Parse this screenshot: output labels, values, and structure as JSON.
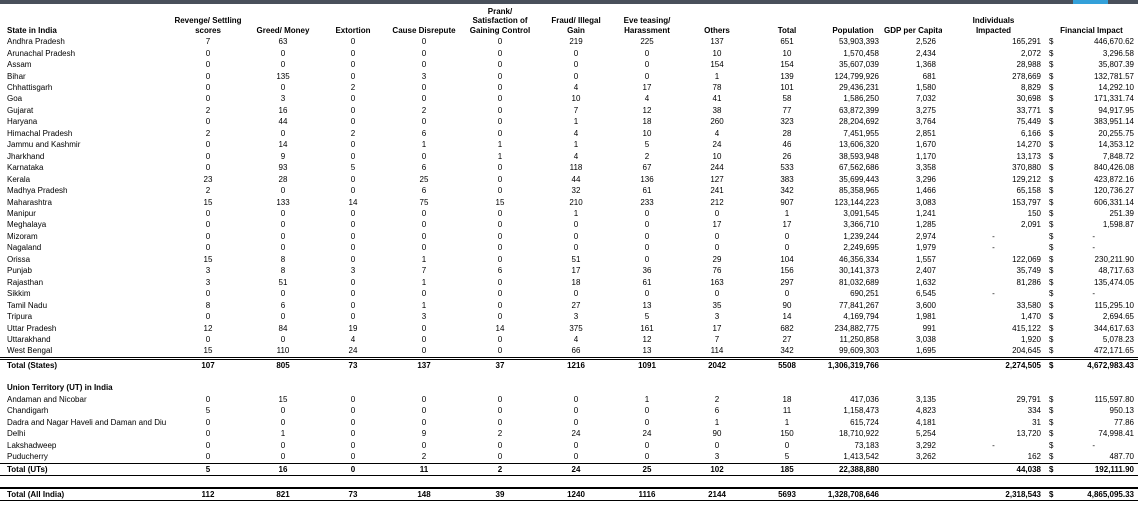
{
  "window": {
    "topbar_color": "#49505b",
    "scrollbar_thumb_color": "#33a0d9"
  },
  "table": {
    "state_col_header": "State in India",
    "currency_symbol": "$",
    "col_headers": [
      {
        "key": "scores",
        "lines": [
          "Revenge/ Settling",
          "scores"
        ]
      },
      {
        "key": "greed",
        "lines": [
          "Greed/ Money"
        ]
      },
      {
        "key": "extortion",
        "lines": [
          "Extortion"
        ]
      },
      {
        "key": "disrepute",
        "lines": [
          "Cause Disrepute"
        ]
      },
      {
        "key": "prank",
        "lines": [
          "Prank/",
          "Satisfaction of",
          "Gaining Control"
        ]
      },
      {
        "key": "fraud",
        "lines": [
          "Fraud/ Illegal",
          "Gain"
        ]
      },
      {
        "key": "eve_teasing",
        "lines": [
          "Eve teasing/",
          "Harassment"
        ]
      },
      {
        "key": "others",
        "lines": [
          "Others"
        ]
      },
      {
        "key": "total",
        "lines": [
          "Total"
        ]
      },
      {
        "key": "population",
        "lines": [
          "Population"
        ]
      },
      {
        "key": "gdp_per_capita",
        "lines": [
          "GDP per Capita"
        ]
      },
      {
        "key": "individuals_impacted",
        "lines": [
          "Individuals",
          "Impacted"
        ]
      },
      {
        "key": "financial_impact",
        "lines": [
          "Financial Impact"
        ]
      }
    ],
    "sections": [
      {
        "kind": "data",
        "name": "states",
        "rows": [
          [
            "Andhra Pradesh",
            "7",
            "63",
            "0",
            "0",
            "0",
            "219",
            "225",
            "137",
            "651",
            "53,903,393",
            "2,526",
            "165,291",
            "446,670.62"
          ],
          [
            "Arunachal Pradesh",
            "0",
            "0",
            "0",
            "0",
            "0",
            "0",
            "0",
            "10",
            "10",
            "1,570,458",
            "2,434",
            "2,072",
            "3,296.58"
          ],
          [
            "Assam",
            "0",
            "0",
            "0",
            "0",
            "0",
            "0",
            "0",
            "154",
            "154",
            "35,607,039",
            "1,368",
            "28,988",
            "35,807.39"
          ],
          [
            "Bihar",
            "0",
            "135",
            "0",
            "3",
            "0",
            "0",
            "0",
            "1",
            "139",
            "124,799,926",
            "681",
            "278,669",
            "132,781.57"
          ],
          [
            "Chhattisgarh",
            "0",
            "0",
            "2",
            "0",
            "0",
            "4",
            "17",
            "78",
            "101",
            "29,436,231",
            "1,580",
            "8,829",
            "14,292.10"
          ],
          [
            "Goa",
            "0",
            "3",
            "0",
            "0",
            "0",
            "10",
            "4",
            "41",
            "58",
            "1,586,250",
            "7,032",
            "30,698",
            "171,331.74"
          ],
          [
            "Gujarat",
            "2",
            "16",
            "0",
            "2",
            "0",
            "7",
            "12",
            "38",
            "77",
            "63,872,399",
            "3,275",
            "33,771",
            "94,917.95"
          ],
          [
            "Haryana",
            "0",
            "44",
            "0",
            "0",
            "0",
            "1",
            "18",
            "260",
            "323",
            "28,204,692",
            "3,764",
            "75,449",
            "383,951.14"
          ],
          [
            "Himachal Pradesh",
            "2",
            "0",
            "2",
            "6",
            "0",
            "4",
            "10",
            "4",
            "28",
            "7,451,955",
            "2,851",
            "6,166",
            "20,255.75"
          ],
          [
            "Jammu and Kashmir",
            "0",
            "14",
            "0",
            "1",
            "1",
            "1",
            "5",
            "24",
            "46",
            "13,606,320",
            "1,670",
            "14,270",
            "14,353.12"
          ],
          [
            "Jharkhand",
            "0",
            "9",
            "0",
            "0",
            "1",
            "4",
            "2",
            "10",
            "26",
            "38,593,948",
            "1,170",
            "13,173",
            "7,848.72"
          ],
          [
            "Karnataka",
            "0",
            "93",
            "5",
            "6",
            "0",
            "118",
            "67",
            "244",
            "533",
            "67,562,686",
            "3,358",
            "370,880",
            "840,426.08"
          ],
          [
            "Kerala",
            "23",
            "28",
            "0",
            "25",
            "0",
            "44",
            "136",
            "127",
            "383",
            "35,699,443",
            "3,296",
            "129,212",
            "423,872.16"
          ],
          [
            "Madhya Pradesh",
            "2",
            "0",
            "0",
            "6",
            "0",
            "32",
            "61",
            "241",
            "342",
            "85,358,965",
            "1,466",
            "65,158",
            "120,736.27"
          ],
          [
            "Maharashtra",
            "15",
            "133",
            "14",
            "75",
            "15",
            "210",
            "233",
            "212",
            "907",
            "123,144,223",
            "3,083",
            "153,797",
            "606,331.14"
          ],
          [
            "Manipur",
            "0",
            "0",
            "0",
            "0",
            "0",
            "1",
            "0",
            "0",
            "1",
            "3,091,545",
            "1,241",
            "150",
            "251.39"
          ],
          [
            "Meghalaya",
            "0",
            "0",
            "0",
            "0",
            "0",
            "0",
            "0",
            "17",
            "17",
            "3,366,710",
            "1,285",
            "2,091",
            "1,598.87"
          ],
          [
            "Mizoram",
            "0",
            "0",
            "0",
            "0",
            "0",
            "0",
            "0",
            "0",
            "0",
            "1,239,244",
            "2,974",
            "-",
            "-"
          ],
          [
            "Nagaland",
            "0",
            "0",
            "0",
            "0",
            "0",
            "0",
            "0",
            "0",
            "0",
            "2,249,695",
            "1,979",
            "-",
            "-"
          ],
          [
            "Orissa",
            "15",
            "8",
            "0",
            "1",
            "0",
            "51",
            "0",
            "29",
            "104",
            "46,356,334",
            "1,557",
            "122,069",
            "230,211.90"
          ],
          [
            "Punjab",
            "3",
            "8",
            "3",
            "7",
            "6",
            "17",
            "36",
            "76",
            "156",
            "30,141,373",
            "2,407",
            "35,749",
            "48,717.63"
          ],
          [
            "Rajasthan",
            "3",
            "51",
            "0",
            "1",
            "0",
            "18",
            "61",
            "163",
            "297",
            "81,032,689",
            "1,632",
            "81,286",
            "135,474.05"
          ],
          [
            "Sikkim",
            "0",
            "0",
            "0",
            "0",
            "0",
            "0",
            "0",
            "0",
            "0",
            "690,251",
            "6,545",
            "-",
            "-"
          ],
          [
            "Tamil Nadu",
            "8",
            "6",
            "0",
            "1",
            "0",
            "27",
            "13",
            "35",
            "90",
            "77,841,267",
            "3,600",
            "33,580",
            "115,295.10"
          ],
          [
            "Tripura",
            "0",
            "0",
            "0",
            "3",
            "0",
            "3",
            "5",
            "3",
            "14",
            "4,169,794",
            "1,981",
            "1,470",
            "2,694.65"
          ],
          [
            "Uttar Pradesh",
            "12",
            "84",
            "19",
            "0",
            "14",
            "375",
            "161",
            "17",
            "682",
            "234,882,775",
            "991",
            "415,122",
            "344,617.63"
          ],
          [
            "Uttarakhand",
            "0",
            "0",
            "4",
            "0",
            "0",
            "4",
            "12",
            "7",
            "27",
            "11,250,858",
            "3,038",
            "1,920",
            "5,078.23"
          ],
          [
            "West Bengal",
            "15",
            "110",
            "24",
            "0",
            "0",
            "66",
            "13",
            "114",
            "342",
            "99,609,303",
            "1,695",
            "204,645",
            "472,171.65"
          ]
        ]
      },
      {
        "kind": "total",
        "style": "states",
        "cells": [
          "Total (States)",
          "107",
          "805",
          "73",
          "137",
          "37",
          "1216",
          "1091",
          "2042",
          "5508",
          "1,306,319,766",
          "",
          "2,274,505",
          "4,672,983.43"
        ]
      },
      {
        "kind": "blank"
      },
      {
        "kind": "label",
        "text": "Union Territory (UT) in India"
      },
      {
        "kind": "data",
        "name": "union_territories",
        "rows": [
          [
            "Andaman and Nicobar",
            "0",
            "15",
            "0",
            "0",
            "0",
            "0",
            "1",
            "2",
            "18",
            "417,036",
            "3,135",
            "29,791",
            "115,597.80"
          ],
          [
            "Chandigarh",
            "5",
            "0",
            "0",
            "0",
            "0",
            "0",
            "0",
            "6",
            "11",
            "1,158,473",
            "4,823",
            "334",
            "950.13"
          ],
          [
            "Dadra and Nagar Haveli and Daman and Diu",
            "0",
            "0",
            "0",
            "0",
            "0",
            "0",
            "0",
            "1",
            "1",
            "615,724",
            "4,181",
            "31",
            "77.86"
          ],
          [
            "Delhi",
            "0",
            "1",
            "0",
            "9",
            "2",
            "24",
            "24",
            "90",
            "150",
            "18,710,922",
            "5,254",
            "13,720",
            "74,998.41"
          ],
          [
            "Lakshadweep",
            "0",
            "0",
            "0",
            "0",
            "0",
            "0",
            "0",
            "0",
            "0",
            "73,183",
            "3,292",
            "-",
            "-"
          ],
          [
            "Puducherry",
            "0",
            "0",
            "0",
            "2",
            "0",
            "0",
            "0",
            "3",
            "5",
            "1,413,542",
            "3,262",
            "162",
            "487.70"
          ]
        ]
      },
      {
        "kind": "total",
        "style": "uts",
        "cells": [
          "Total (UTs)",
          "5",
          "16",
          "0",
          "11",
          "2",
          "24",
          "25",
          "102",
          "185",
          "22,388,880",
          "",
          "44,038",
          "192,111.90"
        ]
      },
      {
        "kind": "blank"
      },
      {
        "kind": "total",
        "style": "all_india",
        "cells": [
          "Total (All India)",
          "112",
          "821",
          "73",
          "148",
          "39",
          "1240",
          "1116",
          "2144",
          "5693",
          "1,328,708,646",
          "",
          "2,318,543",
          "4,865,095.33"
        ]
      }
    ]
  }
}
